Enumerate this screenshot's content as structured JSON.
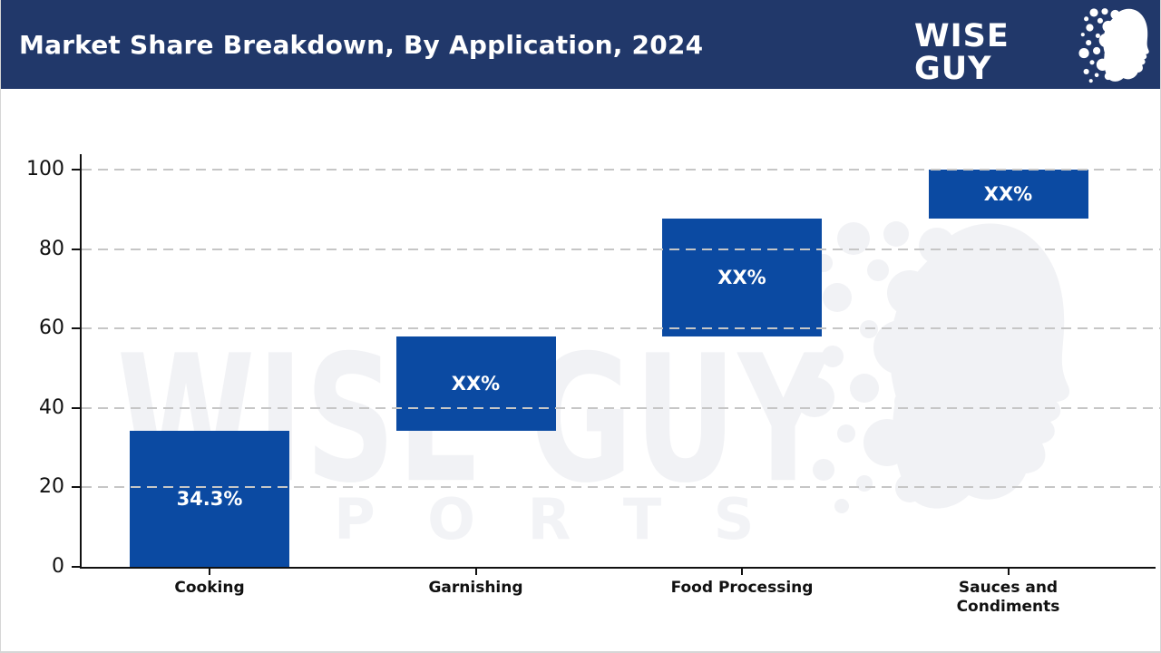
{
  "header": {
    "title": "Market Share Breakdown, By Application, 2024"
  },
  "logo": {
    "line1": "WISE GUY",
    "line2": "R E P O R T S"
  },
  "watermark": {
    "line1": "WISE GUY",
    "line2": "R E P O R T S"
  },
  "colors": {
    "header_bg": "#21386a",
    "bar": "#0b4aa2",
    "grid": "#c6c6c6",
    "axis": "#111111",
    "bar_label": "#ffffff",
    "watermark": "#f1f2f5",
    "frame_border": "#d6d6d6"
  },
  "chart_data": {
    "type": "bar",
    "subtype": "floating-waterfall",
    "title": "Market Share Breakdown, By Application, 2024",
    "categories": [
      "Cooking",
      "Garnishing",
      "Food Processing",
      "Sauces and\nCondiments"
    ],
    "segments": [
      {
        "category": "Cooking",
        "from": 0,
        "to": 34.3,
        "label": "34.3%"
      },
      {
        "category": "Garnishing",
        "from": 34.3,
        "to": 58,
        "label": "XX%"
      },
      {
        "category": "Food Processing",
        "from": 58,
        "to": 87.7,
        "label": "XX%"
      },
      {
        "category": "Sauces and Condiments",
        "from": 87.7,
        "to": 100,
        "label": "XX%"
      }
    ],
    "yticks": [
      0,
      20,
      40,
      60,
      80,
      100
    ],
    "ylim": [
      0,
      105
    ],
    "xlabel": "",
    "ylabel": "",
    "grid": true,
    "grid_style": "dashed",
    "legend": false
  }
}
